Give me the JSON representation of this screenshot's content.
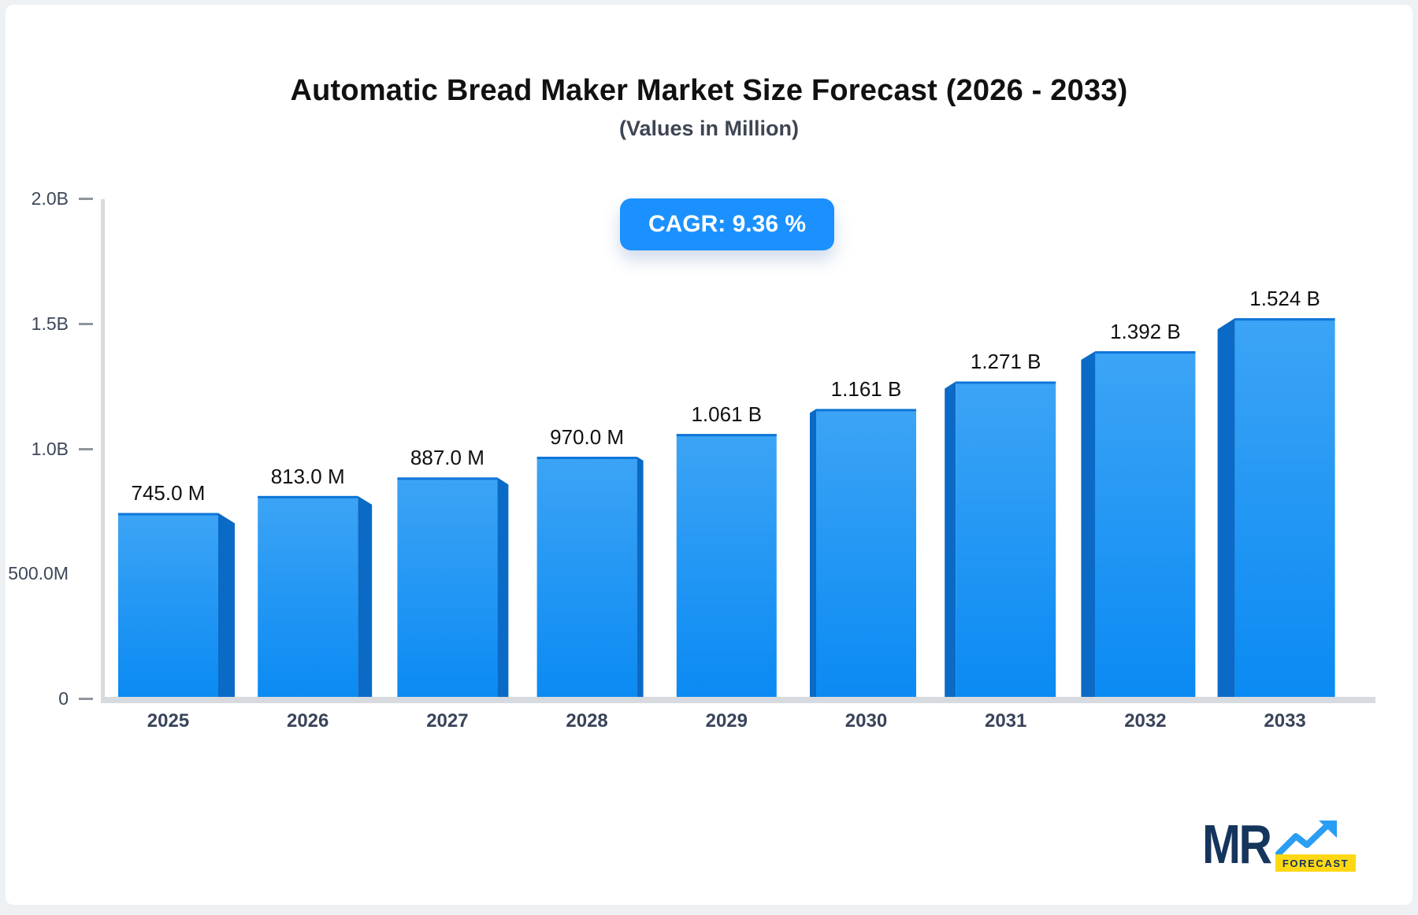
{
  "header": {
    "cagr_label": "CAGR: 9.36 %"
  },
  "chart_data": {
    "type": "bar",
    "title": "Automatic Bread Maker Market Size Forecast (2026 - 2033)",
    "subtitle": "(Values in Million)",
    "categories": [
      "2025",
      "2026",
      "2027",
      "2028",
      "2029",
      "2030",
      "2031",
      "2032",
      "2033"
    ],
    "values_millions": [
      745,
      813,
      887,
      970,
      1061,
      1161,
      1271,
      1392,
      1524
    ],
    "value_labels": [
      "745.0 M",
      "813.0 M",
      "887.0 M",
      "970.0 M",
      "1.061 B",
      "1.161 B",
      "1.271 B",
      "1.392 B",
      "1.524 B"
    ],
    "xlabel": "",
    "ylabel": "",
    "ylim": [
      0,
      2000
    ],
    "yticks": [
      {
        "label": "2.0B",
        "value": 2000,
        "dash": true
      },
      {
        "label": "1.5B",
        "value": 1500,
        "dash": true
      },
      {
        "label": "1.0B",
        "value": 1000,
        "dash": true
      },
      {
        "label": "500.0M",
        "value": 500,
        "dash": false
      },
      {
        "label": "0",
        "value": 0,
        "dash": true
      }
    ],
    "grid": false,
    "legend": "none",
    "bar_style": "3d-perspective"
  },
  "colors": {
    "badge_blue": "#1b91ff",
    "bar_face_top": "#3ca4f5",
    "bar_face_bottom": "#0a8af3",
    "bar_top_edge": "#0f76d8",
    "bar_side": "#0b6ac6",
    "axis_gray": "#d7dade",
    "tick_gray": "#8f959d",
    "ylabel_color": "#3c4759",
    "xlabel_color": "#39445a",
    "value_color": "#101010",
    "navy": "#16355d",
    "logo_yellow": "#ffd813",
    "logo_arrow_blue": "#2a9df4"
  },
  "logo": {
    "mr": "MR",
    "forecast": "FORECAST"
  }
}
